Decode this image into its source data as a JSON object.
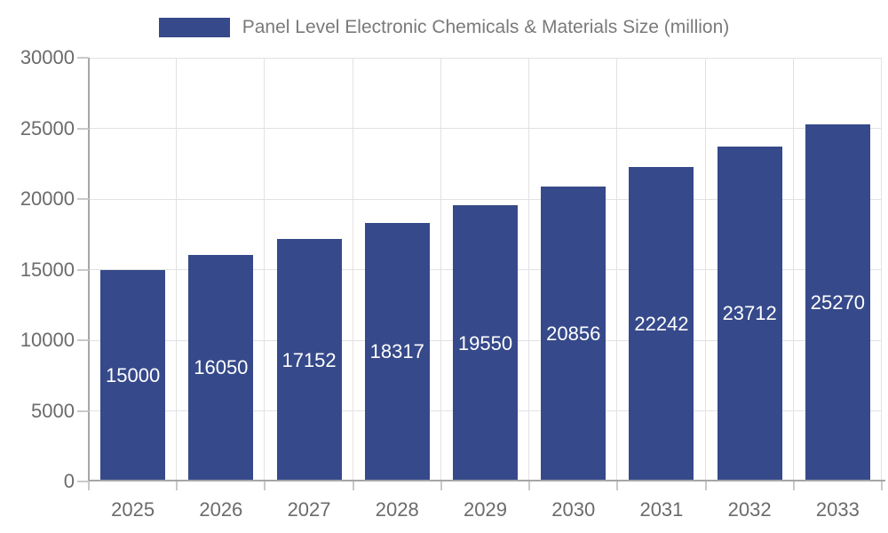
{
  "legend": {
    "label": "Panel Level Electronic Chemicals & Materials Size (million)"
  },
  "chart_data": {
    "type": "bar",
    "title": "Panel Level Electronic Chemicals & Materials Size (million)",
    "series_name": "Panel Level Electronic Chemicals & Materials Size (million)",
    "categories": [
      "2025",
      "2026",
      "2027",
      "2028",
      "2029",
      "2030",
      "2031",
      "2032",
      "2033"
    ],
    "values": [
      15000,
      16050,
      17152,
      18317,
      19550,
      20856,
      22242,
      23712,
      25270
    ],
    "value_labels": [
      "15000",
      "16050",
      "17152",
      "18317",
      "19550",
      "20856",
      "22242",
      "23712",
      "25270"
    ],
    "xlabel": "",
    "ylabel": "",
    "ylim": [
      0,
      30000
    ],
    "yticks": [
      0,
      5000,
      10000,
      15000,
      20000,
      25000,
      30000
    ],
    "ytick_labels": [
      "0",
      "5000",
      "10000",
      "15000",
      "20000",
      "25000",
      "30000"
    ],
    "grid": true,
    "legend_position": "top"
  },
  "colors": {
    "bar": "#36498A",
    "grid": "#e2e2e2",
    "axis": "#a6a6a6",
    "tick": "#c9c9c9",
    "axis_text": "#6b6b6b",
    "legend_text": "#7a7a7a",
    "value_text": "#ffffff",
    "background": "#ffffff"
  }
}
